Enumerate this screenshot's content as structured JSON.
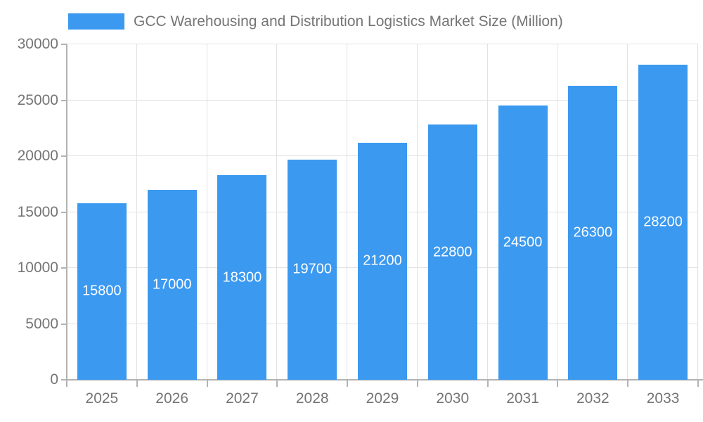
{
  "chart_data": {
    "type": "bar",
    "title": "GCC Warehousing and Distribution Logistics Market Size (Million)",
    "categories": [
      "2025",
      "2026",
      "2027",
      "2028",
      "2029",
      "2030",
      "2031",
      "2032",
      "2033"
    ],
    "values": [
      15800,
      17000,
      18300,
      19700,
      21200,
      22800,
      24500,
      26300,
      28200
    ],
    "xlabel": "",
    "ylabel": "",
    "ylim": [
      0,
      30000
    ],
    "ytick_step": 5000,
    "yticks": [
      0,
      5000,
      10000,
      15000,
      20000,
      25000,
      30000
    ],
    "grid": true,
    "legend_position": "top-left",
    "value_labels": "inside-center",
    "colors": {
      "bar": "#3B99F0",
      "value_label": "#FFFFFF",
      "axis": "#B3B3B3",
      "gridline": "#E2E2E2",
      "text": "#757575",
      "background": "#FFFFFF"
    }
  }
}
